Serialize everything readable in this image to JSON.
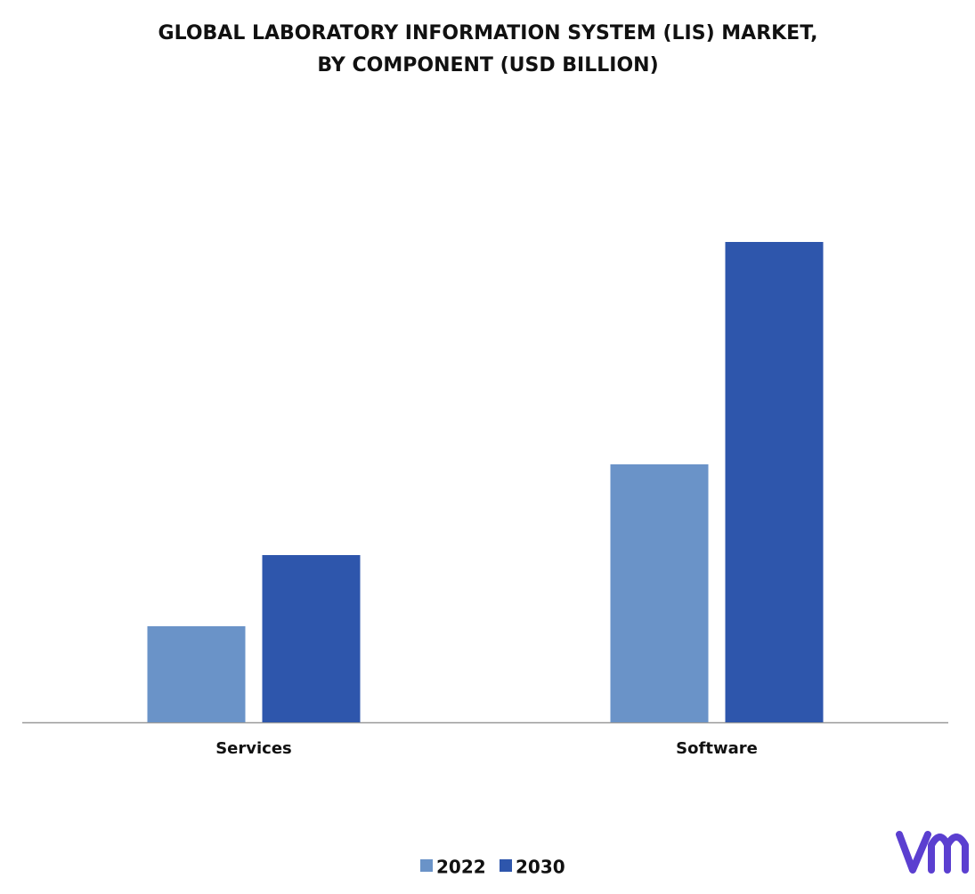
{
  "chart_data": {
    "type": "bar",
    "title": "GLOBAL LABORATORY INFORMATION SYSTEM (LIS) MARKET,",
    "subtitle": "BY COMPONENT (USD BILLION)",
    "categories": [
      "Services",
      "Software"
    ],
    "series": [
      {
        "name": "2022",
        "color": "#6a93c8",
        "values": [
          0.54,
          1.45
        ]
      },
      {
        "name": "2030",
        "color": "#2e56ac",
        "values": [
          0.94,
          2.7
        ]
      }
    ],
    "legend": "bottom"
  }
}
